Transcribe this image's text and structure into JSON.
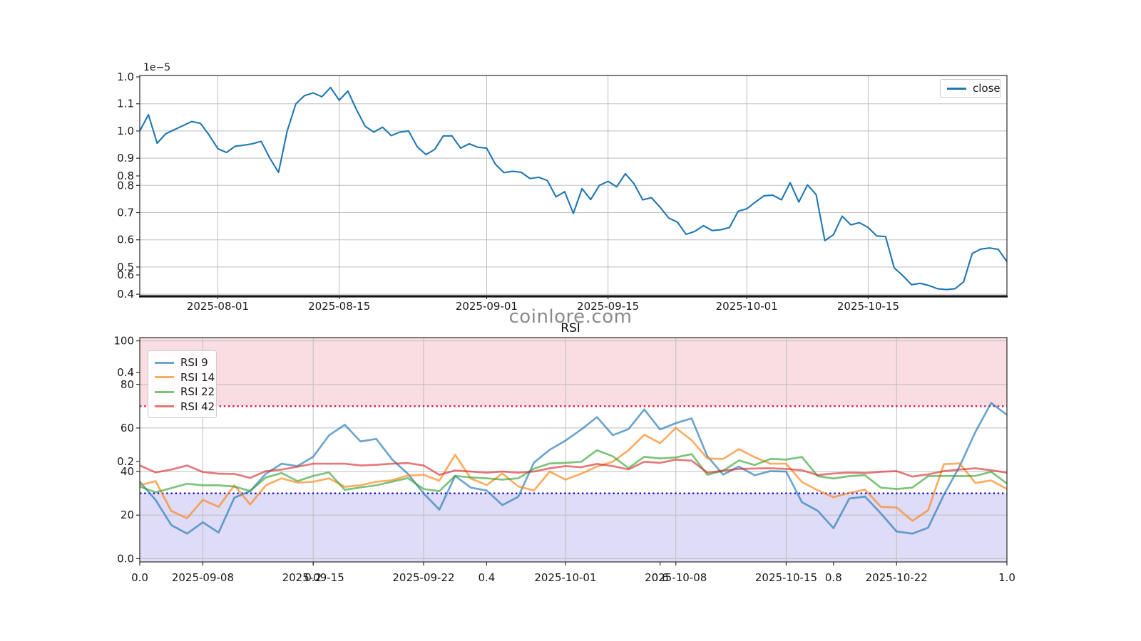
{
  "watermark": "coinlore.com",
  "chart_data": [
    {
      "type": "line",
      "title": "",
      "offset_text": "1e−5",
      "ylim": [
        0.395,
        1.204
      ],
      "y_ticks": [
        1.1,
        1.0,
        0.9,
        0.8,
        0.7,
        0.6,
        0.5,
        0.4
      ],
      "ghost_y_ticks": [
        "1.0",
        "0.8",
        "0.6"
      ],
      "x_ticks": [
        {
          "label": "2025-08-01",
          "index": 9
        },
        {
          "label": "2025-08-15",
          "index": 23
        },
        {
          "label": "2025-09-01",
          "index": 40
        },
        {
          "label": "2025-09-15",
          "index": 54
        },
        {
          "label": "2025-10-01",
          "index": 70
        },
        {
          "label": "2025-10-15",
          "index": 84
        }
      ],
      "grid": true,
      "legend_position": "upper right",
      "series": [
        {
          "name": "close",
          "color": "#1f77b4",
          "opacity": 1,
          "values": [
            1.0,
            1.06,
            0.955,
            0.99,
            1.005,
            1.02,
            1.035,
            1.028,
            0.985,
            0.935,
            0.921,
            0.944,
            0.948,
            0.953,
            0.962,
            0.9,
            0.848,
            1.0,
            1.1,
            1.13,
            1.14,
            1.126,
            1.16,
            1.113,
            1.147,
            1.078,
            1.017,
            0.996,
            1.014,
            0.983,
            0.996,
            1.0,
            0.942,
            0.913,
            0.932,
            0.982,
            0.982,
            0.937,
            0.953,
            0.94,
            0.937,
            0.878,
            0.847,
            0.852,
            0.848,
            0.825,
            0.83,
            0.818,
            0.758,
            0.777,
            0.697,
            0.788,
            0.748,
            0.8,
            0.815,
            0.795,
            0.843,
            0.806,
            0.747,
            0.755,
            0.72,
            0.68,
            0.665,
            0.62,
            0.631,
            0.652,
            0.634,
            0.637,
            0.645,
            0.705,
            0.714,
            0.739,
            0.762,
            0.764,
            0.747,
            0.81,
            0.739,
            0.802,
            0.766,
            0.597,
            0.619,
            0.687,
            0.655,
            0.663,
            0.645,
            0.614,
            0.612,
            0.497,
            0.468,
            0.435,
            0.44,
            0.432,
            0.42,
            0.417,
            0.42,
            0.445,
            0.55,
            0.566,
            0.57,
            0.565,
            0.52
          ]
        }
      ]
    },
    {
      "type": "line",
      "title": "RSI",
      "ylim": [
        -1.5,
        101.5
      ],
      "y_ticks": [
        100,
        80,
        60,
        40,
        20
      ],
      "y_zero_label": "0.0",
      "ghost_y_ticks": [
        "0.4",
        "0.2"
      ],
      "norm_x_ticks": [
        "0.0",
        "0.2",
        "0.4",
        "0.6",
        "0.8",
        "1.0"
      ],
      "x_ticks": [
        {
          "label": "2025-09-08",
          "index": 4
        },
        {
          "label": "2025-09-15",
          "index": 11
        },
        {
          "label": "2025-09-22",
          "index": 18
        },
        {
          "label": "2025-10-01",
          "index": 27
        },
        {
          "label": "2025-10-08",
          "index": 34
        },
        {
          "label": "2025-10-15",
          "index": 41
        },
        {
          "label": "2025-10-22",
          "index": 48
        }
      ],
      "overbought_level": 70,
      "oversold_level": 30,
      "colors": {
        "overbought_band": "#f9dde3",
        "oversold_band": "#dedcf6",
        "overbought_line": "#dc143c",
        "oversold_line": "#1414cc"
      },
      "grid": true,
      "legend_position": "upper left",
      "series": [
        {
          "name": "RSI 9",
          "color": "#1f77b4",
          "opacity": 0.65,
          "values": [
            35.3,
            27.0,
            15.4,
            11.5,
            16.7,
            12.0,
            28.0,
            31.0,
            39.0,
            43.6,
            42.5,
            46.8,
            56.6,
            61.5,
            53.8,
            55.0,
            45.6,
            39.0,
            30.0,
            22.5,
            38.0,
            32.6,
            31.3,
            24.6,
            28.4,
            44.1,
            50.0,
            54.2,
            59.3,
            65.0,
            56.7,
            59.5,
            68.5,
            59.3,
            62.2,
            64.4,
            47.0,
            38.6,
            42.3,
            38.3,
            40.2,
            40.0,
            25.9,
            22.0,
            14.0,
            27.6,
            28.5,
            20.8,
            12.5,
            11.5,
            14.2,
            29.3,
            42.4,
            58.2,
            71.5,
            66.0
          ]
        },
        {
          "name": "RSI 14",
          "color": "#ff7f0e",
          "opacity": 0.65,
          "values": [
            33.7,
            35.6,
            21.9,
            18.6,
            27.0,
            23.8,
            33.7,
            24.9,
            33.7,
            36.9,
            34.9,
            35.3,
            36.9,
            33.0,
            33.7,
            35.3,
            36.0,
            38.2,
            38.5,
            35.8,
            47.7,
            36.8,
            33.8,
            39.1,
            33.2,
            31.3,
            40.0,
            36.3,
            39.0,
            42.3,
            44.5,
            49.8,
            56.9,
            53.0,
            60.0,
            54.4,
            46.0,
            45.8,
            50.3,
            46.6,
            43.6,
            43.6,
            35.2,
            31.4,
            28.2,
            30.2,
            31.7,
            23.8,
            23.5,
            17.4,
            22.2,
            43.4,
            43.7,
            34.8,
            35.9,
            32.0
          ]
        },
        {
          "name": "RSI 22",
          "color": "#2ca02c",
          "opacity": 0.62,
          "values": [
            33.1,
            30.5,
            32.4,
            34.4,
            33.7,
            33.7,
            33.1,
            31.1,
            37.3,
            39.3,
            35.6,
            38.0,
            39.6,
            31.6,
            32.7,
            33.7,
            35.3,
            37.0,
            32.0,
            31.0,
            38.0,
            37.3,
            36.9,
            36.3,
            36.9,
            41.3,
            43.7,
            44.0,
            44.5,
            49.8,
            47.0,
            41.6,
            46.8,
            46.0,
            46.5,
            48.0,
            38.5,
            40.4,
            45.1,
            43.0,
            45.8,
            45.5,
            46.7,
            37.9,
            36.8,
            37.9,
            38.3,
            32.6,
            32.0,
            32.6,
            37.9,
            38.0,
            37.9,
            38.0,
            39.9,
            34.5
          ]
        },
        {
          "name": "RSI 42",
          "color": "#d62728",
          "opacity": 0.62,
          "values": [
            42.8,
            39.6,
            40.9,
            42.8,
            39.8,
            39.0,
            38.9,
            37.1,
            40.2,
            40.9,
            42.2,
            43.6,
            43.6,
            43.6,
            42.8,
            43.1,
            43.6,
            43.9,
            42.8,
            38.5,
            40.5,
            40.0,
            39.5,
            40.0,
            39.5,
            40.0,
            41.5,
            42.5,
            42.0,
            43.5,
            42.5,
            41.0,
            44.5,
            44.0,
            45.5,
            45.0,
            39.5,
            40.4,
            41.2,
            41.4,
            41.5,
            41.2,
            40.6,
            38.4,
            39.1,
            39.5,
            39.3,
            39.9,
            40.2,
            37.7,
            38.7,
            40.2,
            40.9,
            41.5,
            40.6,
            39.5
          ]
        }
      ]
    }
  ]
}
